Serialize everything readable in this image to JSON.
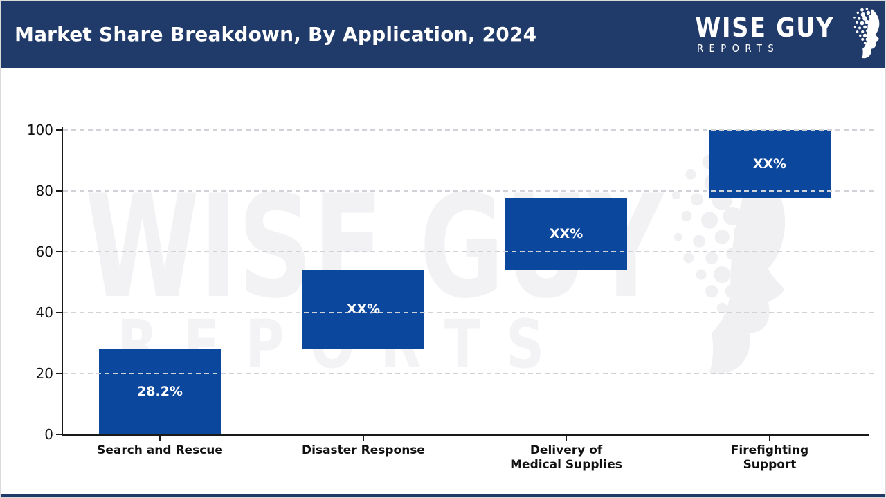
{
  "header": {
    "title": "Market Share Breakdown, By Application, 2024",
    "logo_line1": "WISE GUY",
    "logo_line2": "REPORTS"
  },
  "watermark": {
    "line1": "WISE GUY",
    "line2": "REPORTS"
  },
  "colors": {
    "header_bg": "#203a69",
    "footer_bg": "#203a69",
    "bar": "#0c479e",
    "bar_label": "#ffffff",
    "grid": "#cfd2d6",
    "axis": "#1a1a1a"
  },
  "chart_data": {
    "type": "bar",
    "variant": "waterfall",
    "title": "Market Share Breakdown, By Application, 2024",
    "categories": [
      "Search and Rescue",
      "Disaster Response",
      "Delivery of Medical Supplies",
      "Firefighting Support"
    ],
    "category_lines": [
      [
        "Search and Rescue"
      ],
      [
        "Disaster Response"
      ],
      [
        "Delivery of",
        "Medical Supplies"
      ],
      [
        "Firefighting",
        "Support"
      ]
    ],
    "series": [
      {
        "name": "Market share (%)",
        "segments": [
          {
            "category": "Search and Rescue",
            "start": 0,
            "end": 28.2,
            "label": "28.2%"
          },
          {
            "category": "Disaster Response",
            "start": 28.2,
            "end": 54.1,
            "label": "XX%"
          },
          {
            "category": "Delivery of Medical Supplies",
            "start": 54.1,
            "end": 77.8,
            "label": "XX%"
          },
          {
            "category": "Firefighting Support",
            "start": 77.8,
            "end": 100,
            "label": "XX%"
          }
        ]
      }
    ],
    "ylim": [
      0,
      100
    ],
    "yticks": [
      0,
      20,
      40,
      60,
      80,
      100
    ],
    "xlabel": "",
    "ylabel": "",
    "grid": "horizontal-dashed-above-bars",
    "legend": "none"
  }
}
